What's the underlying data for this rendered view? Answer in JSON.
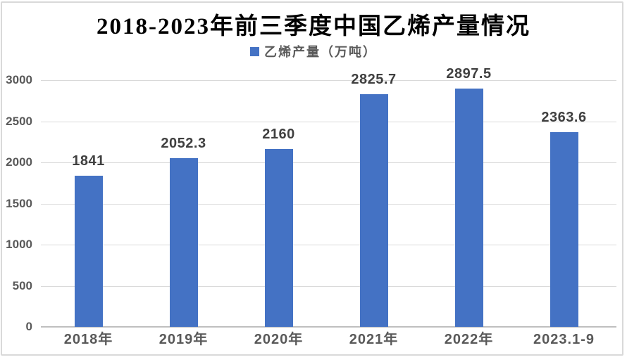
{
  "chart_data": {
    "type": "bar",
    "title": "2018-2023年前三季度中国乙烯产量情况",
    "legend": {
      "label": "乙烯产量（万吨）",
      "position": "top",
      "swatch_color": "#4472C4"
    },
    "categories": [
      "2018年",
      "2019年",
      "2020年",
      "2021年",
      "2022年",
      "2023.1-9"
    ],
    "series": [
      {
        "name": "乙烯产量（万吨）",
        "color": "#4472C4",
        "values": [
          1841,
          2052.3,
          2160,
          2825.7,
          2897.5,
          2363.6
        ]
      }
    ],
    "data_labels": [
      "1841",
      "2052.3",
      "2160",
      "2825.7",
      "2897.5",
      "2363.6"
    ],
    "xlabel": "",
    "ylabel": "",
    "y_axis": {
      "min": 0,
      "max": 3000,
      "step": 500,
      "tick_labels": [
        "0",
        "500",
        "1000",
        "1500",
        "2000",
        "2500",
        "3000"
      ]
    },
    "grid": true,
    "colors": {
      "bar": "#4472C4",
      "gridline": "#d9d9d9",
      "axis_line": "#bfbfbf",
      "tick_label": "#595959",
      "data_label": "#404040",
      "category_label": "#595959",
      "title": "#000000",
      "frame_border": "#d9d9d9",
      "background": "#ffffff"
    }
  }
}
